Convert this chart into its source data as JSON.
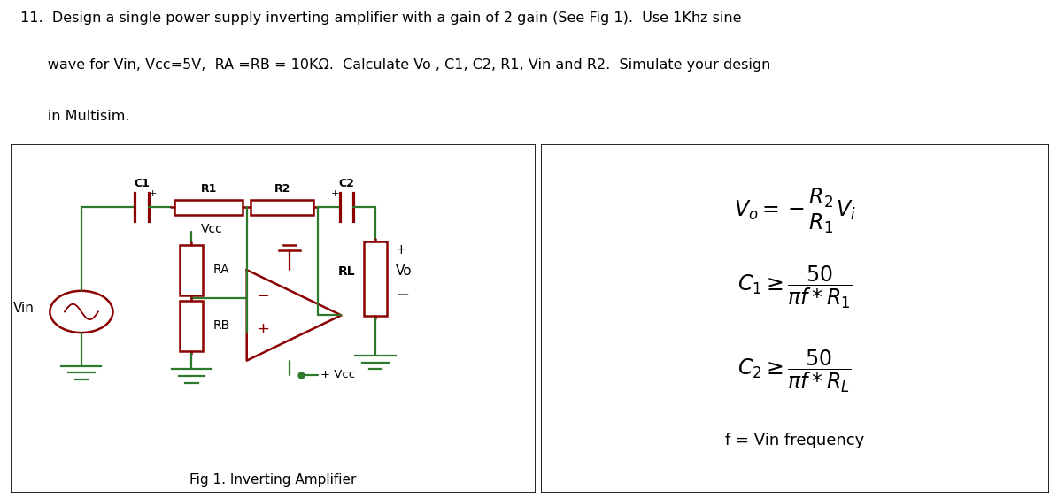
{
  "title_line1": "11.  Design a single power supply inverting amplifier with a gain of 2 gain (See Fig 1).  Use 1Khz sine",
  "title_line2": "      wave for Vin, Vcc=5V,  RA =RB = 10KΩ.  Calculate Vo , C1, C2, R1, Vin and R2.  Simulate your design",
  "title_line3": "      in Multisim.",
  "fig_caption": "Fig 1. Inverting Amplifier",
  "wire_color": "#2d7a2d",
  "component_color": "#8b0000",
  "text_color": "#000000",
  "bg_color": "#ffffff",
  "box_color": "#000000"
}
